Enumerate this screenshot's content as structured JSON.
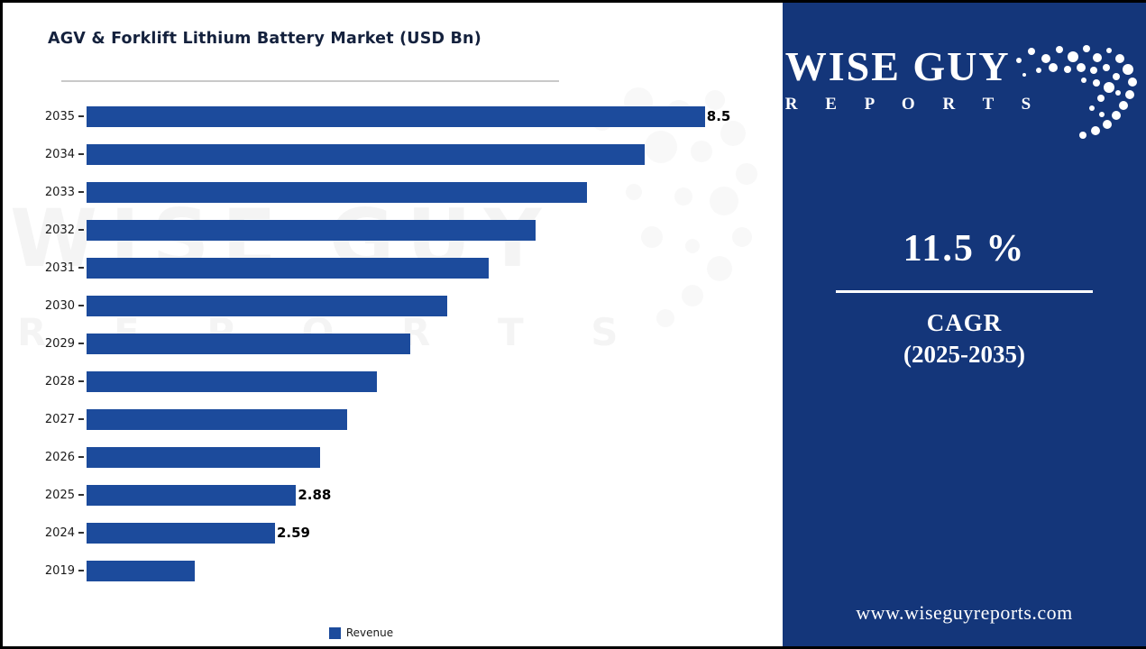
{
  "chart": {
    "title": "AGV & Forklift Lithium Battery Market (USD Bn)",
    "legend_label": "Revenue"
  },
  "chart_data": {
    "type": "bar",
    "orientation": "horizontal",
    "title": "AGV & Forklift Lithium Battery Market (USD Bn)",
    "categories": [
      "2035",
      "2034",
      "2033",
      "2032",
      "2031",
      "2030",
      "2029",
      "2028",
      "2027",
      "2026",
      "2025",
      "2024",
      "2019"
    ],
    "values": [
      8.5,
      7.67,
      6.88,
      6.17,
      5.53,
      4.96,
      4.45,
      3.99,
      3.58,
      3.21,
      2.88,
      2.59,
      1.49
    ],
    "bar_labels": [
      "8.5",
      "",
      "",
      "",
      "",
      "",
      "",
      "",
      "",
      "",
      "2.88",
      "2.59",
      ""
    ],
    "xlim": [
      0,
      8.8
    ],
    "xlabel": "",
    "ylabel": "",
    "grid": false,
    "legend": [
      "Revenue"
    ],
    "legend_position": "bottom",
    "bar_color": "#1c4b9c"
  },
  "watermark": {
    "line1": "WISE GUY",
    "line2": "R E P O R T S"
  },
  "panel": {
    "logo_line1": "WISE GUY",
    "logo_line2": "R E P O R T S",
    "cagr_value": "11.5 %",
    "cagr_label": "CAGR",
    "cagr_period": "(2025-2035)",
    "website": "www.wiseguyreports.com",
    "bg_color": "#14367a"
  },
  "colors": {
    "bar": "#1c4b9c",
    "panel_bg": "#14367a",
    "title_text": "#14213d",
    "divider": "#c9c9c9"
  }
}
